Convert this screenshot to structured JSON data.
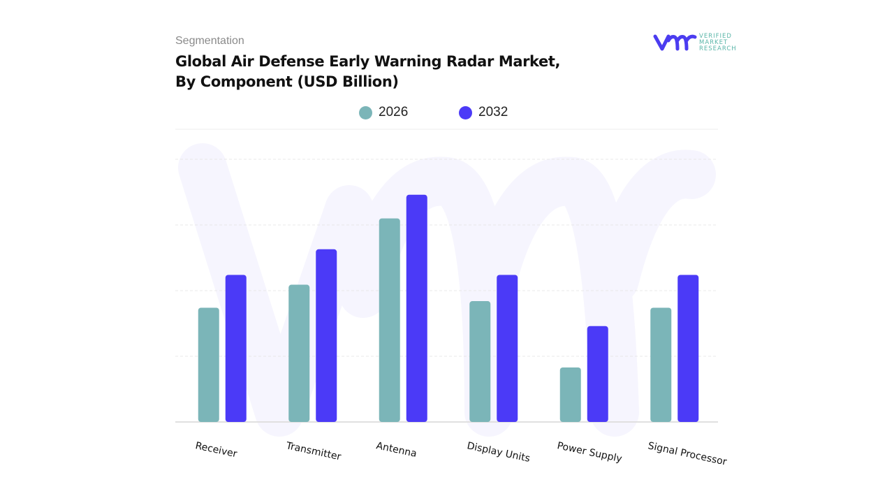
{
  "header": {
    "segment_label": "Segmentation",
    "title_line1": "Global Air Defense Early Warning Radar Market,",
    "title_line2": "By Component (USD Billion)"
  },
  "logo": {
    "mark": "vmr",
    "text": [
      "VERIFIED",
      "MARKET",
      "RESEARCH"
    ],
    "color_mark": "#4b3cf0",
    "color_text": "#59b5a8"
  },
  "colors": {
    "s2026": "#7bb5b8",
    "s2032": "#4b3af7",
    "grid": "#e4e4e4"
  },
  "chart_data": {
    "type": "bar",
    "title": "Global Air Defense Early Warning Radar Market, By Component (USD Billion)",
    "categories": [
      "Receiver",
      "Transmitter",
      "Antenna",
      "Display Units",
      "Power Supply",
      "Signal Processor"
    ],
    "series": [
      {
        "name": "2026",
        "values": [
          1.74,
          2.09,
          3.1,
          1.84,
          0.83,
          1.74
        ]
      },
      {
        "name": "2032",
        "values": [
          2.24,
          2.63,
          3.46,
          2.24,
          1.46,
          2.24
        ]
      }
    ],
    "ylim": [
      0,
      4
    ],
    "grid": true,
    "legend": "top-center",
    "xlabel": "",
    "ylabel": "",
    "note_values": "estimated relative to unlabeled gridlines"
  }
}
